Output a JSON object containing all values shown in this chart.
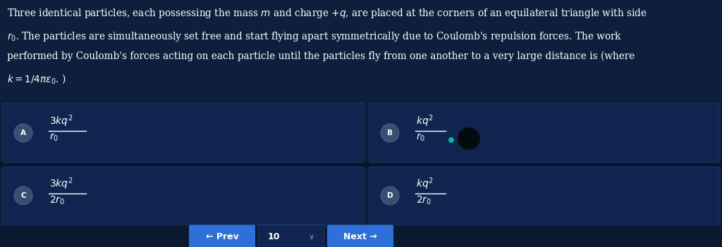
{
  "background_color": "#0d1f3c",
  "question_text_lines": [
    "Three identical particles, each possessing the mass $m$ and charge $+q$, are placed at the corners of an equilateral triangle with side",
    "$r_0$. The particles are simultaneously set free and start flying apart symmetrically due to Coulomb's repulsion forces. The work",
    "performed by Coulomb's forces acting on each particle until the particles fly from one another to a very large distance is (where",
    "$k = 1/4\\pi\\varepsilon_0$. )"
  ],
  "options": [
    {
      "label": "A",
      "formula_num": "3kq^2",
      "formula_den": "r_0",
      "col": 0,
      "row": 0
    },
    {
      "label": "B",
      "formula_num": "kq^2",
      "formula_den": "r_0",
      "col": 1,
      "row": 0,
      "has_artifact": true
    },
    {
      "label": "C",
      "formula_num": "3kq^2",
      "formula_den": "2r_0",
      "col": 0,
      "row": 1
    },
    {
      "label": "D",
      "formula_num": "kq^2",
      "formula_den": "2r_0",
      "col": 1,
      "row": 1
    }
  ],
  "option_bg_color": "#0f2550",
  "option_border_color": "#1c3a6e",
  "label_circle_color": "#374f72",
  "label_text_color": "#ffffff",
  "formula_text_color": "#ffffff",
  "text_color": "#ffffff",
  "button_color": "#2e6fd8",
  "nav_bg_color": "#0a1830",
  "gap_color": "#07152b"
}
